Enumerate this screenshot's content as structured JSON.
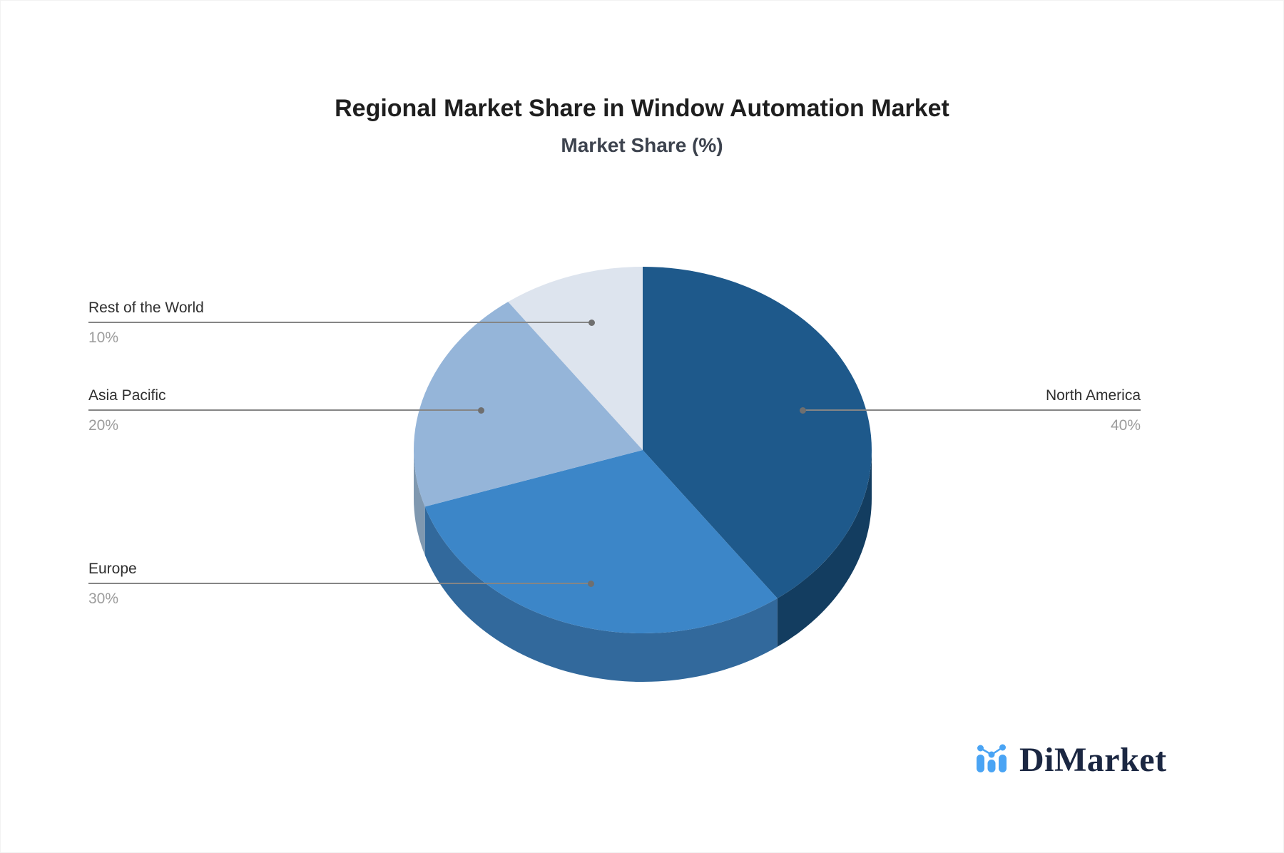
{
  "chart_data": {
    "type": "pie",
    "title": "Regional Market Share in Window Automation Market",
    "subtitle": "Market Share (%)",
    "unit": "%",
    "start_angle": "top",
    "direction": "clockwise",
    "style": "3d",
    "legend_position": "none",
    "series": [
      {
        "label": "North America",
        "value": 40,
        "display": "40%",
        "color": "#1e598b",
        "side_color": "#133d60"
      },
      {
        "label": "Europe",
        "value": 30,
        "display": "30%",
        "color": "#3c86c8",
        "side_color": "#32699c"
      },
      {
        "label": "Asia Pacific",
        "value": 20,
        "display": "20%",
        "color": "#95b5d9",
        "side_color": "#7f98b0"
      },
      {
        "label": "Rest of the World",
        "value": 10,
        "display": "10%",
        "color": "#dde4ee",
        "side_color": "#b9c3d4"
      }
    ]
  },
  "logo": {
    "text": "DiMarket",
    "icon": "bar-chart-logo-icon",
    "accent_color": "#4aa4f4",
    "text_color": "#1b2742"
  },
  "colors": {
    "background": "#ffffff",
    "border": "#f2f2f2",
    "title": "#1e1e1e",
    "subtitle": "#3d434e",
    "label_text": "#2f2f2f",
    "value_text": "#9c9c9c",
    "leader_line": "#858585",
    "leader_dot": "#6f6f6f"
  }
}
